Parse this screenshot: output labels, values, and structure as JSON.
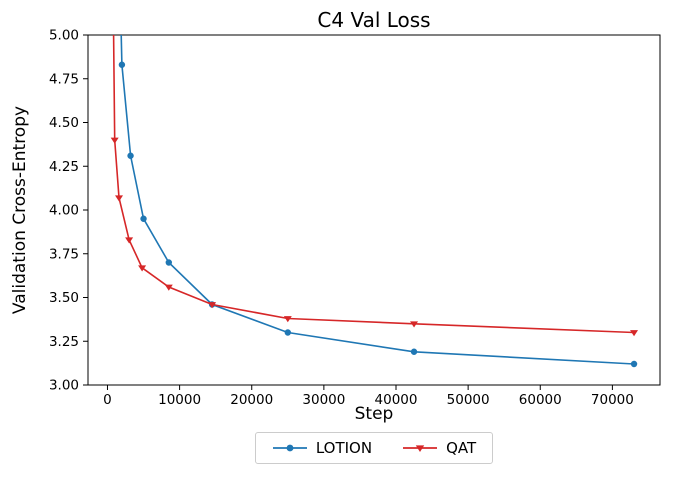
{
  "chart_data": {
    "type": "line",
    "title": "C4 Val Loss",
    "xlabel": "Step",
    "ylabel": "Validation Cross-Entropy",
    "xlim": [
      -2700,
      76600
    ],
    "ylim": [
      3.0,
      5.0
    ],
    "x_ticks": [
      0,
      10000,
      20000,
      30000,
      40000,
      50000,
      60000,
      70000
    ],
    "y_ticks": [
      3.0,
      3.25,
      3.5,
      3.75,
      4.0,
      4.25,
      4.5,
      4.75,
      5.0
    ],
    "grid": false,
    "legend_position": "bottom-center",
    "series": [
      {
        "name": "LOTION",
        "color": "#1f77b4",
        "marker": "circle",
        "points": [
          [
            1400,
            5.9
          ],
          [
            2000,
            4.83
          ],
          [
            3200,
            4.31
          ],
          [
            5000,
            3.95
          ],
          [
            8500,
            3.7
          ],
          [
            14500,
            3.46
          ],
          [
            25000,
            3.3
          ],
          [
            42500,
            3.19
          ],
          [
            73000,
            3.12
          ]
        ]
      },
      {
        "name": "QAT",
        "color": "#d62728",
        "marker": "triangle-down",
        "points": [
          [
            700,
            5.6
          ],
          [
            1000,
            4.4
          ],
          [
            1600,
            4.07
          ],
          [
            3000,
            3.83
          ],
          [
            4800,
            3.67
          ],
          [
            8500,
            3.56
          ],
          [
            14500,
            3.46
          ],
          [
            25000,
            3.38
          ],
          [
            42500,
            3.35
          ],
          [
            73000,
            3.3
          ]
        ]
      }
    ]
  }
}
